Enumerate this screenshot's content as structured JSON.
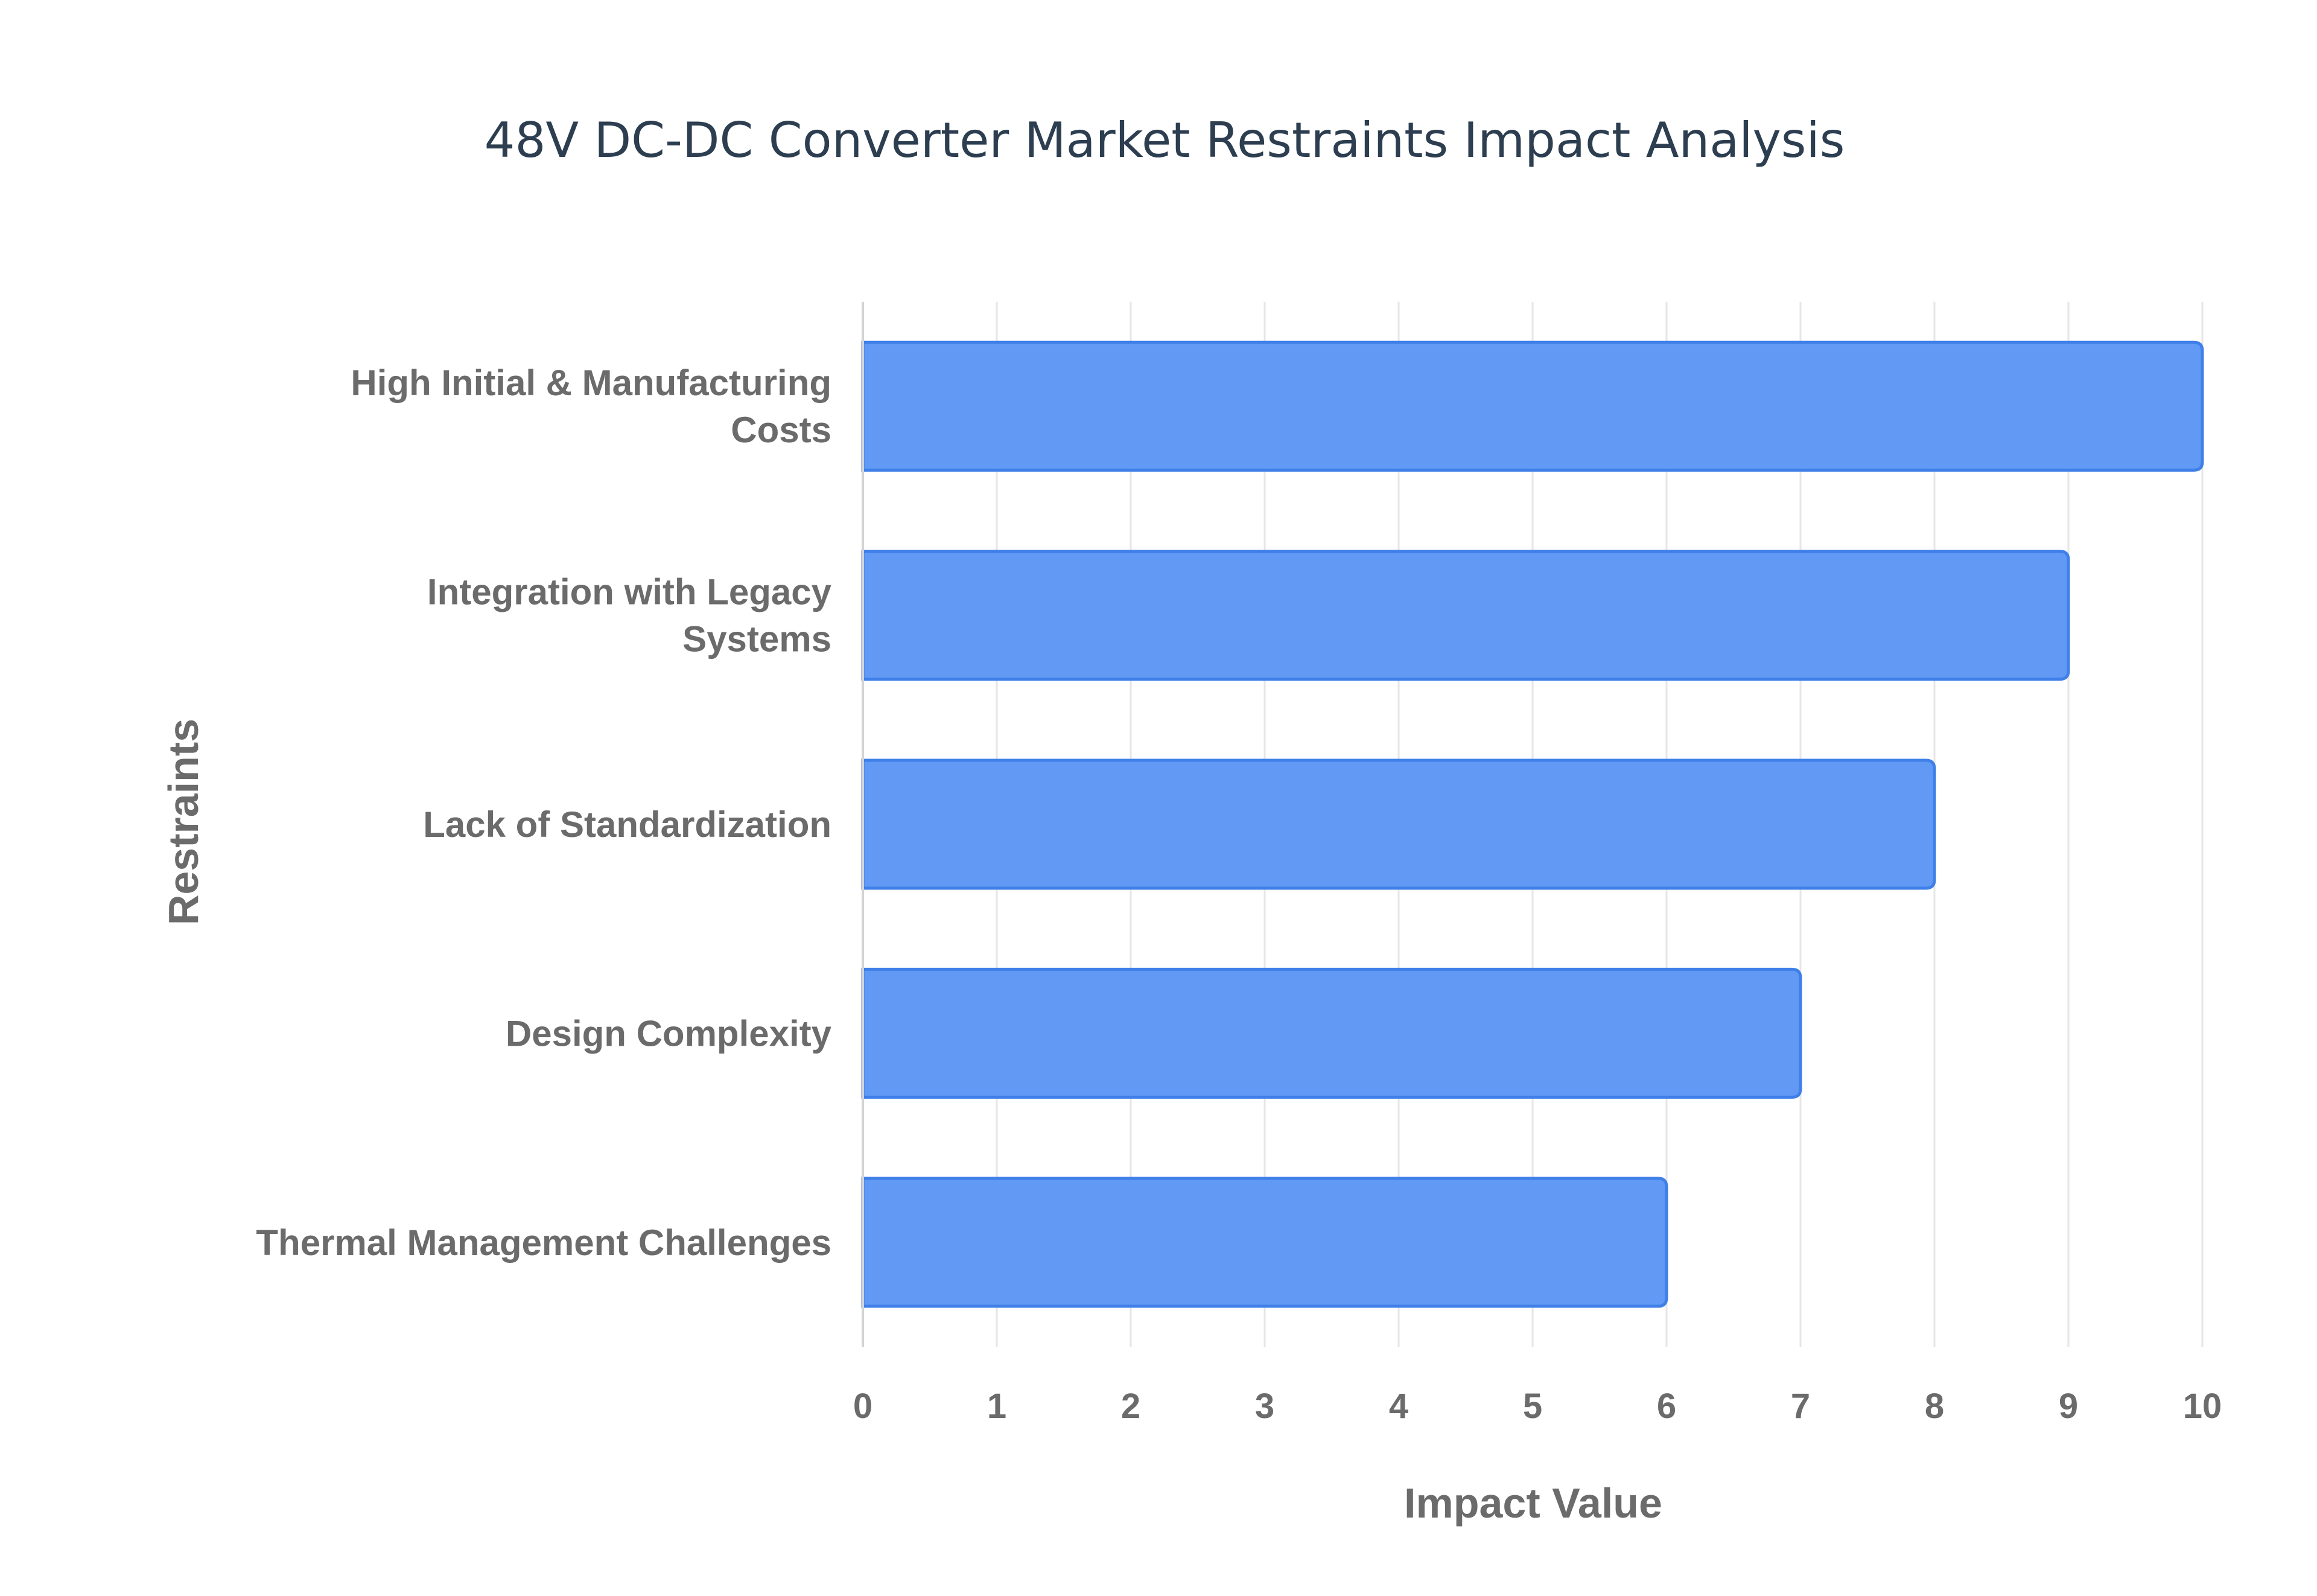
{
  "chart_data": {
    "type": "bar",
    "orientation": "horizontal",
    "title": "48V DC-DC Converter Market Restraints Impact Analysis",
    "xlabel": "Impact Value",
    "ylabel": "Restraints",
    "categories": [
      [
        "High Initial & Manufacturing",
        "Costs"
      ],
      [
        "Integration with Legacy",
        "Systems"
      ],
      [
        "Lack of Standardization"
      ],
      [
        "Design Complexity"
      ],
      [
        "Thermal Management Challenges"
      ]
    ],
    "values": [
      10,
      9,
      8,
      7,
      6
    ],
    "xlim": [
      0,
      10
    ],
    "xticks": [
      0,
      1,
      2,
      3,
      4,
      5,
      6,
      7,
      8,
      9,
      10
    ],
    "grid": true,
    "legend": "none",
    "colors": {
      "bar_fill": "#6199f5",
      "bar_stroke": "#3f7fe8",
      "title": "#2c3e50",
      "labels": "#6b6b6b"
    }
  }
}
